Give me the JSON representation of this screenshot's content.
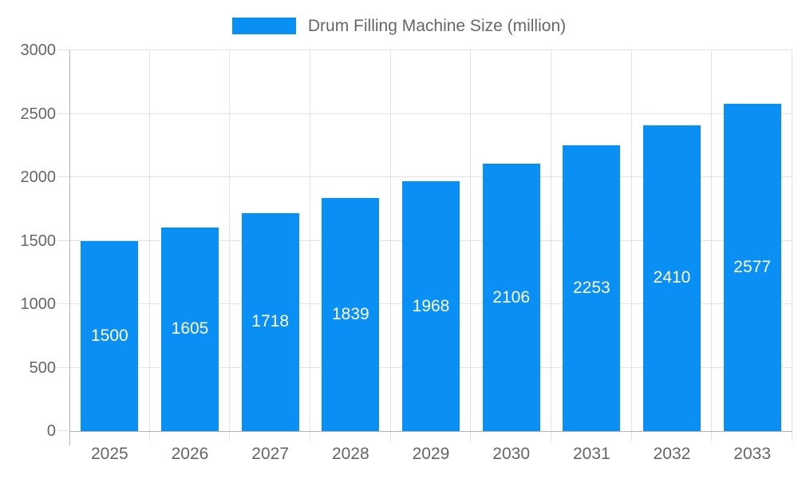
{
  "legend": {
    "label": "Drum Filling Machine Size (million)"
  },
  "colors": {
    "bar": "#0a8ff5",
    "grid": "#e2e2e2",
    "axis_border": "#b3b3b3",
    "axis_text": "#666666",
    "bar_label_text": "#ffffff",
    "background": "#ffffff"
  },
  "chart_data": {
    "type": "bar",
    "title": "Drum Filling Machine Size (million)",
    "categories": [
      "2025",
      "2026",
      "2027",
      "2028",
      "2029",
      "2030",
      "2031",
      "2032",
      "2033"
    ],
    "values": [
      1500,
      1605,
      1718,
      1839,
      1968,
      2106,
      2253,
      2410,
      2577
    ],
    "bar_labels": [
      "1500",
      "1605",
      "1718",
      "1839",
      "1968",
      "2106",
      "2253",
      "2410",
      "2577"
    ],
    "xlabel": "",
    "ylabel": "",
    "ylim": [
      0,
      3000
    ],
    "yticks": [
      0,
      500,
      1000,
      1500,
      2000,
      2500,
      3000
    ],
    "grid": true,
    "legend_position": "top",
    "bar_value_labels_visible": true
  }
}
